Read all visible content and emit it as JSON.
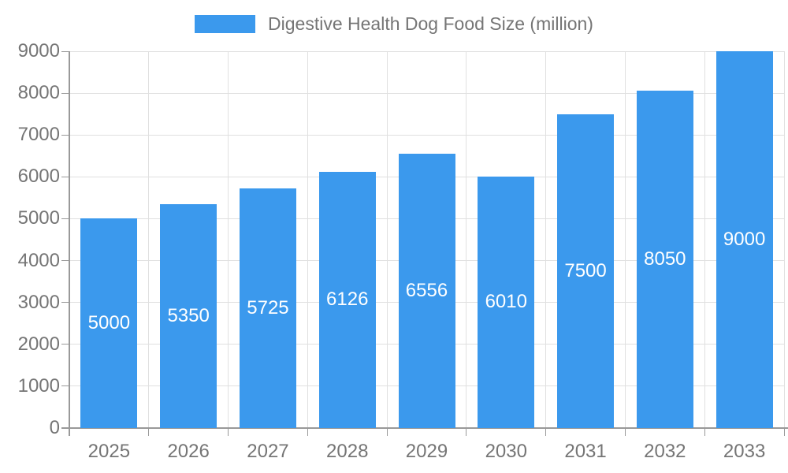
{
  "chart_data": {
    "type": "bar",
    "title": "Digestive Health Dog Food Size (million)",
    "categories": [
      "2025",
      "2026",
      "2027",
      "2028",
      "2029",
      "2030",
      "2031",
      "2032",
      "2033"
    ],
    "values": [
      5000,
      5350,
      5725,
      6126,
      6556,
      6010,
      7500,
      8050,
      9000
    ],
    "value_labels": [
      "5000",
      "5350",
      "5725",
      "6126",
      "6556",
      "6010",
      "7500",
      "8050",
      "9000"
    ],
    "xlabel": "",
    "ylabel": "",
    "ylim": [
      0,
      9000
    ],
    "ytick_step": 1000,
    "yticks": [
      "0",
      "1000",
      "2000",
      "3000",
      "4000",
      "5000",
      "6000",
      "7000",
      "8000",
      "9000"
    ],
    "grid": true,
    "legend_position": "top-center",
    "colors": {
      "bar": "#3B99ED",
      "value_label": "#FFFFFF",
      "grid": "#E0E0E0",
      "axis": "#999999",
      "tick_label": "#757575"
    }
  }
}
